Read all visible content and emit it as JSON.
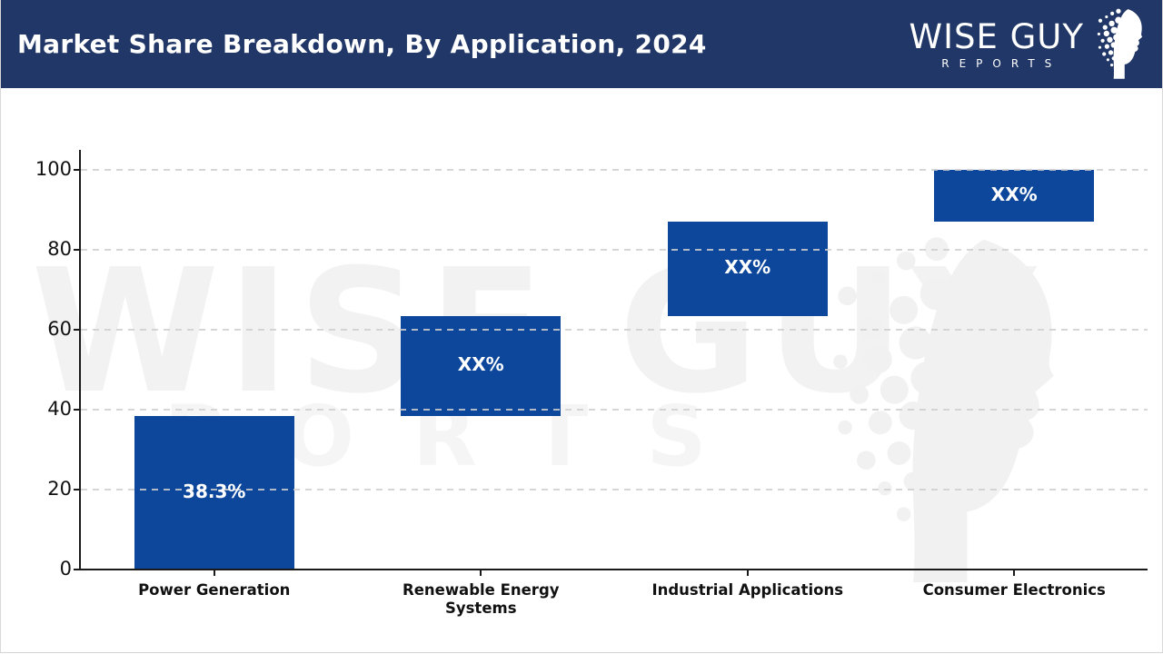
{
  "header": {
    "title": "Market Share Breakdown, By Application, 2024",
    "bg_color": "#213767",
    "logo": {
      "line1": "WISE GUY",
      "line2": "REPORTS"
    }
  },
  "watermark": {
    "line1": "WISE GUY",
    "line2": "PORTS"
  },
  "chart_data": {
    "type": "bar",
    "subtype": "waterfall",
    "title": "Market Share Breakdown, By Application, 2024",
    "categories": [
      "Power Generation",
      "Renewable Energy Systems",
      "Industrial Applications",
      "Consumer Electronics"
    ],
    "segments": [
      {
        "category": "Power Generation",
        "start": 0,
        "end": 38.3,
        "label": "38.3%"
      },
      {
        "category": "Renewable Energy Systems",
        "start": 38.3,
        "end": 63.4,
        "label": "XX%"
      },
      {
        "category": "Industrial Applications",
        "start": 63.4,
        "end": 87,
        "label": "XX%"
      },
      {
        "category": "Consumer Electronics",
        "start": 87,
        "end": 100,
        "label": "XX%"
      }
    ],
    "xlabel": "",
    "ylabel": "",
    "yticks": [
      0,
      20,
      40,
      60,
      80,
      100
    ],
    "ylim": [
      0,
      105
    ],
    "grid": true,
    "grid_style": "dashed",
    "legend_position": "none",
    "bar_color": "#0c479c",
    "bar_label_color": "#ffffff"
  }
}
